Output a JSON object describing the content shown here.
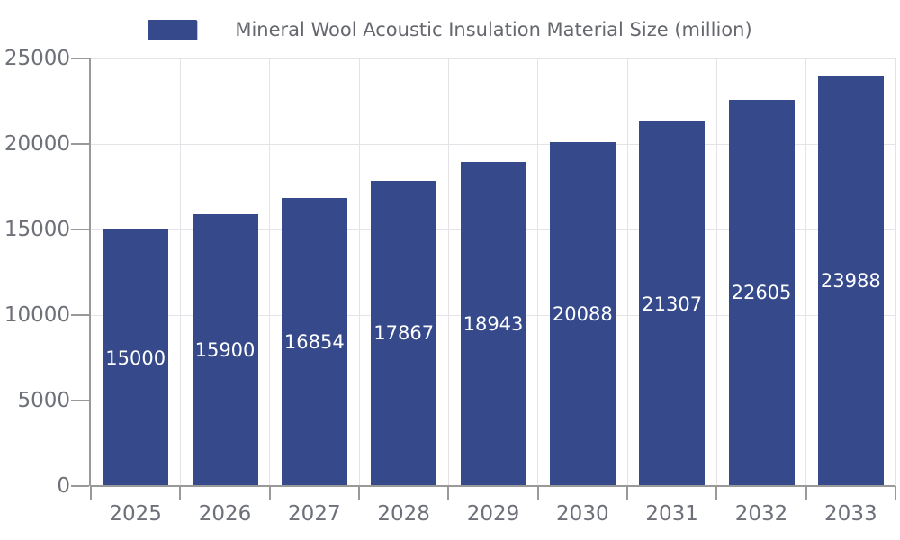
{
  "legend": {
    "label": "Mineral Wool Acoustic Insulation Material Size (million)"
  },
  "chart_data": {
    "type": "bar",
    "title": "Mineral Wool Acoustic Insulation Material Size (million)",
    "categories": [
      "2025",
      "2026",
      "2027",
      "2028",
      "2029",
      "2030",
      "2031",
      "2032",
      "2033"
    ],
    "series": [
      {
        "name": "Mineral Wool Acoustic Insulation Material Size (million)",
        "values": [
          15000,
          15900,
          16854,
          17867,
          18943,
          20088,
          21307,
          22605,
          23988
        ]
      }
    ],
    "values": [
      15000,
      15900,
      16854,
      17867,
      18943,
      20088,
      21307,
      22605,
      23988
    ],
    "value_labels": [
      "15000",
      "15900",
      "16854",
      "17867",
      "18943",
      "20088",
      "21307",
      "22605",
      "23988"
    ],
    "xlabel": "",
    "ylabel": "",
    "ylim": [
      0,
      25000
    ],
    "yticks": [
      0,
      5000,
      10000,
      15000,
      20000,
      25000
    ],
    "grid": true,
    "legend_position": "top-center",
    "colors": {
      "bar": "#35498b",
      "value_label": "#ffffff",
      "axis_label": "#6e7079",
      "legend_label": "#66686f",
      "gridline": "#e3e3e8",
      "axis_line": "#999999"
    }
  }
}
